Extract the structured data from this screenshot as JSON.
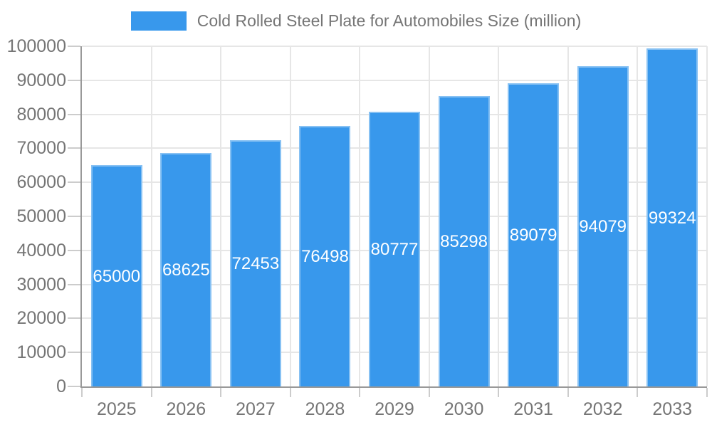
{
  "legend": {
    "label": "Cold Rolled Steel Plate for Automobiles Size (million)"
  },
  "chart_data": {
    "type": "bar",
    "title": "Cold Rolled Steel Plate for Automobiles Size (million)",
    "categories": [
      "2025",
      "2026",
      "2027",
      "2028",
      "2029",
      "2030",
      "2031",
      "2032",
      "2033"
    ],
    "values": [
      65000,
      68625,
      72453,
      76498,
      80777,
      85298,
      89079,
      94079,
      99324
    ],
    "xlabel": "",
    "ylabel": "",
    "ylim": [
      0,
      100000
    ],
    "ytick_step": 10000,
    "grid": true,
    "legend_position": "top-center",
    "bar_label_position": "center",
    "colors": {
      "bar": "#3898EC",
      "bar_border": "rgba(255,255,255,0.4)",
      "bar_label": "#FFFFFF",
      "grid": "#E6E6E6",
      "axis": "#999999",
      "tick": "#CCCCCC",
      "text": "#757575",
      "background": "#FFFFFF"
    }
  }
}
